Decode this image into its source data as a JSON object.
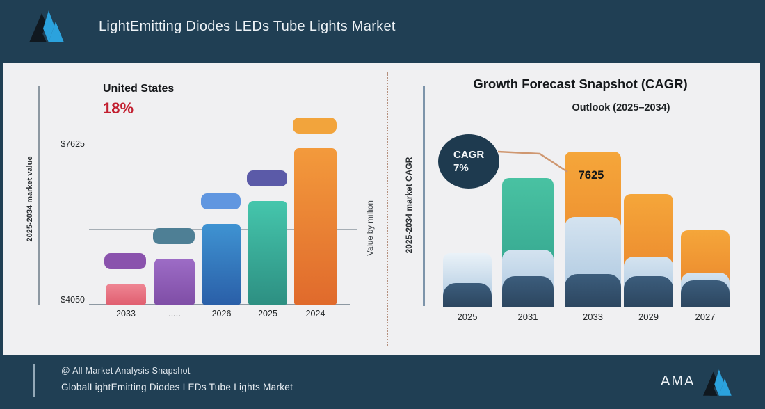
{
  "header": {
    "title": "LightEmitting Diodes LEDs Tube Lights Market",
    "logo_icon": "ama-logo",
    "bg_color": "#203f54"
  },
  "footer": {
    "line1": "@ All Market Analysis Snapshot",
    "line2": "GlobalLightEmitting Diodes LEDs Tube Lights Market",
    "brand": "AMA",
    "logo_icon": "ama-logo"
  },
  "left_chart": {
    "title": "United States",
    "highlight_pct": "18%",
    "highlight_color": "#c21f30",
    "ylabel_left": "2025-2034 market value",
    "ylabel_right": "Value by million",
    "ytick_top": "$7625",
    "ytick_bottom": "$4050"
  },
  "right_chart": {
    "title": "Growth Forecast Snapshot (CAGR)",
    "subtitle": "Outlook (2025–2034)",
    "badge_line1": "CAGR",
    "badge_line2": "7%",
    "badge_color": "#1e3a4f",
    "annotation": "7625",
    "ylabel": "2025-2034 market CAGR"
  },
  "chart_data": [
    {
      "type": "bar",
      "title": "United States",
      "subtitle": "18%",
      "ylabel": "2025-2034 market value",
      "ylabel_secondary": "Value by million",
      "yticks": [
        7625,
        4050
      ],
      "ylim": [
        4050,
        7900
      ],
      "grid": true,
      "categories": [
        "2033",
        ".....",
        "2026",
        "2025",
        "2024"
      ],
      "values": [
        4430,
        5000,
        5810,
        6340,
        7550
      ],
      "bar_colors": [
        [
          "#ef8694",
          "#e05f70"
        ],
        [
          "#9d6cc6",
          "#7f4ea6"
        ],
        [
          "#3f93d2",
          "#2a5fa8"
        ],
        [
          "#45c6ac",
          "#2d8f82"
        ],
        [
          "#f39a3c",
          "#e06a2c"
        ]
      ],
      "cap_colors": [
        "#8a52ad",
        "#4e7f95",
        "#6096e0",
        "#5b5aa8",
        "#f2a43c"
      ]
    },
    {
      "type": "stacked-bar",
      "title": "Growth Forecast Snapshot (CAGR)",
      "subtitle": "Outlook (2025–2034)",
      "cagr_label": "CAGR 7%",
      "annotated_value": 7625,
      "ylabel": "2025-2034 market CAGR",
      "grid": false,
      "categories": [
        "2025",
        "2031",
        "2033",
        "2029",
        "2027"
      ],
      "totals": [
        2630,
        6330,
        7625,
        5540,
        3760
      ],
      "bars": [
        {
          "category": "2025",
          "segments": [
            {
              "value": 1160,
              "colors": [
                "#3c5d7c",
                "#2c4660"
              ]
            },
            {
              "value": 1470,
              "colors": [
                "#eaf2f8",
                "#a9c5de"
              ]
            }
          ]
        },
        {
          "category": "2031",
          "segments": [
            {
              "value": 1500,
              "colors": [
                "#3c5d7c",
                "#2c4660"
              ]
            },
            {
              "value": 1300,
              "colors": [
                "#d4e3f0",
                "#a9c5de"
              ]
            },
            {
              "value": 3530,
              "colors": [
                "#49c2a2",
                "#2f9e8a"
              ]
            }
          ]
        },
        {
          "category": "2033",
          "segments": [
            {
              "value": 1600,
              "colors": [
                "#3c5d7c",
                "#2c4660"
              ]
            },
            {
              "value": 2810,
              "colors": [
                "#d4e3f0",
                "#a9c5de"
              ]
            },
            {
              "value": 3215,
              "colors": [
                "#f5a63a",
                "#e8802a"
              ]
            }
          ]
        },
        {
          "category": "2029",
          "segments": [
            {
              "value": 1500,
              "colors": [
                "#3c5d7c",
                "#2c4660"
              ]
            },
            {
              "value": 960,
              "colors": [
                "#d4e3f0",
                "#a9c5de"
              ]
            },
            {
              "value": 3080,
              "colors": [
                "#f5a63a",
                "#e8802a"
              ]
            }
          ]
        },
        {
          "category": "2027",
          "segments": [
            {
              "value": 1300,
              "colors": [
                "#3c5d7c",
                "#2c4660"
              ]
            },
            {
              "value": 370,
              "colors": [
                "#d4e3f0",
                "#a9c5de"
              ]
            },
            {
              "value": 2090,
              "colors": [
                "#f5a63a",
                "#e8802a"
              ]
            }
          ]
        }
      ]
    }
  ]
}
